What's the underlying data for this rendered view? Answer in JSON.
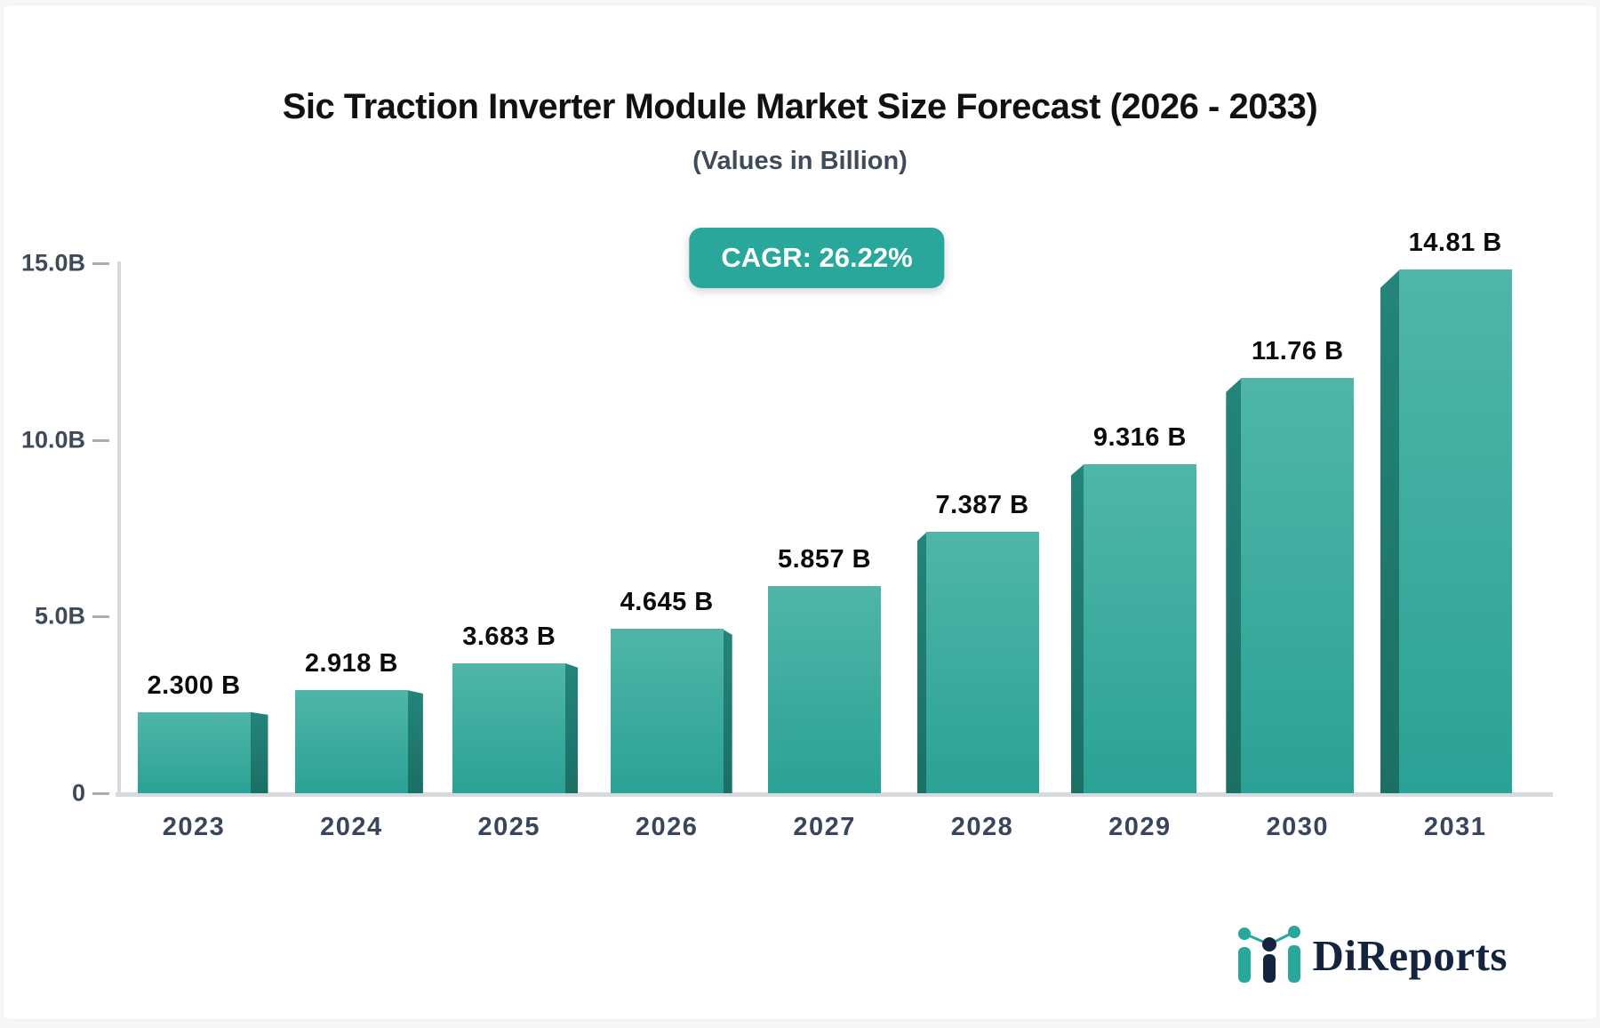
{
  "header": {
    "title": "Sic Traction Inverter Module Market Size Forecast (2026 - 2033)",
    "subtitle": "(Values in Billion)",
    "cagr_label": "CAGR: 26.22%"
  },
  "chart_data": {
    "type": "bar",
    "categories": [
      "2023",
      "2024",
      "2025",
      "2026",
      "2027",
      "2028",
      "2029",
      "2030",
      "2031"
    ],
    "values": [
      2.3,
      2.918,
      3.683,
      4.645,
      5.857,
      7.387,
      9.316,
      11.76,
      14.81
    ],
    "value_labels": [
      "2.300 B",
      "2.918 B",
      "3.683 B",
      "4.645 B",
      "5.857 B",
      "7.387 B",
      "9.316 B",
      "11.76 B",
      "14.81 B"
    ],
    "title": "Sic Traction Inverter Module Market Size Forecast (2026 - 2033)",
    "subtitle": "(Values in Billion)",
    "xlabel": "",
    "ylabel": "",
    "unit": "Billion",
    "ylim": [
      0,
      15
    ],
    "grid": false,
    "legend": false,
    "style": "pseudo-3d extruded bars, perspective vanishing point at center bar",
    "y_ticks": [
      {
        "label": "0",
        "value": 0
      },
      {
        "label": "5.0B",
        "value": 5
      },
      {
        "label": "10.0B",
        "value": 10
      },
      {
        "label": "15.0B",
        "value": 15
      }
    ]
  },
  "colors": {
    "accent_teal": "#2aa79b",
    "bar_face_top": "#4fb6a8",
    "bar_face_bottom": "#2aa295",
    "bar_side_top": "#24857a",
    "bar_side_bottom": "#1b6f64",
    "axis_line": "#d6d9de",
    "tick_mark": "#a9aeb6",
    "axis_label": "#3e4a59",
    "value_label": "#0b0b0b",
    "logo_navy": "#14243e"
  },
  "logo": {
    "text": "DiReports",
    "icon": "bar-chart-with-trendline-icon"
  }
}
